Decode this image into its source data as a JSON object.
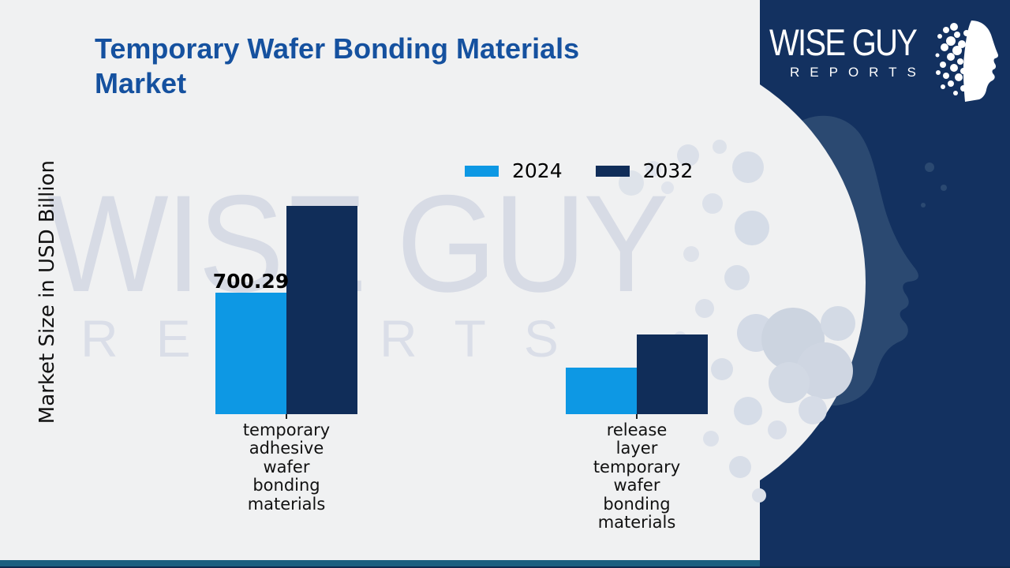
{
  "title": "Temporary Wafer Bonding Materials Market",
  "y_axis_label": "Market Size in USD Billion",
  "watermark": {
    "line1": "WISE GUY",
    "line2": "REPORTS"
  },
  "logo": {
    "title": "WISE GUY",
    "subtitle": "REPORTS"
  },
  "legend": {
    "items": [
      {
        "label": "2024",
        "color": "#0d98e4"
      },
      {
        "label": "2032",
        "color": "#102d59"
      }
    ]
  },
  "colors": {
    "background": "#f0f1f2",
    "panel_navy": "#133160",
    "bar_2024": "#0d98e4",
    "bar_2032": "#102d59",
    "title_blue": "#15519f",
    "watermark_gray": "#d7dbe5",
    "face_navy": "#2b4971",
    "footer_teal": "#1b5f80",
    "footer_dark": "#0e2a4f"
  },
  "chart_data": {
    "type": "bar",
    "categories": [
      "temporary adhesive wafer bonding materials",
      "release layer temporary wafer bonding materials"
    ],
    "series": [
      {
        "name": "2024",
        "color": "#0d98e4",
        "values": [
          700.29,
          268
        ]
      },
      {
        "name": "2032",
        "color": "#102d59",
        "values": [
          1200.5,
          459
        ]
      }
    ],
    "value_labels": [
      {
        "series": "2024",
        "category_index": 0,
        "text": "700.29"
      }
    ],
    "title": "Temporary Wafer Bonding Materials Market",
    "xlabel": "",
    "ylabel": "Market Size in USD Billion",
    "grid": false,
    "y_axis_ticks_visible": false,
    "legend_position": "upper right",
    "estimation_note": "Only 700.29 is printed on the figure; the other three values are estimated from bar heights."
  }
}
